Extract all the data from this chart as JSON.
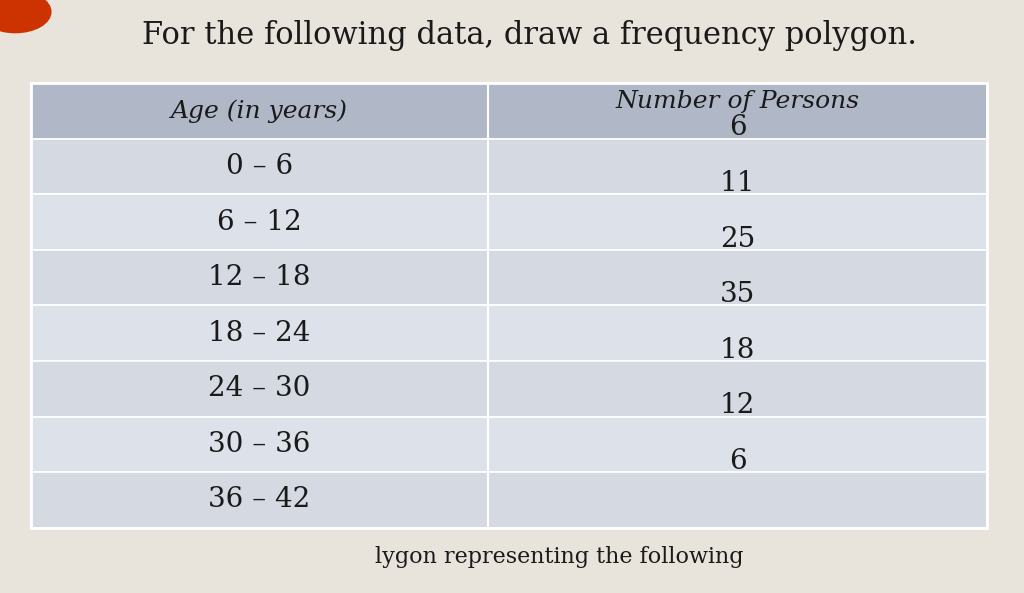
{
  "title_text": "For the following data, draw a frequency polygon.",
  "col1_header": "Age (in years)",
  "col2_header": "Number of Persons",
  "age_groups": [
    "0 – 6",
    "6 – 12",
    "12 – 18",
    "18 – 24",
    "24 – 30",
    "30 – 36",
    "36 – 42"
  ],
  "frequencies": [
    "6",
    "11",
    "25",
    "35",
    "18",
    "12",
    "6"
  ],
  "bg_color_main": "#c8cdd6",
  "bg_color_header": "#b0b8c8",
  "bg_color_light": "#d4d9e2",
  "bg_color_lighter": "#dde1ea",
  "bg_page": "#e8e4dc",
  "text_color": "#1a1a1a",
  "header_italic": true,
  "title_fontsize": 22,
  "header_fontsize": 18,
  "data_fontsize": 20,
  "bottom_text": "lygon representing the following"
}
